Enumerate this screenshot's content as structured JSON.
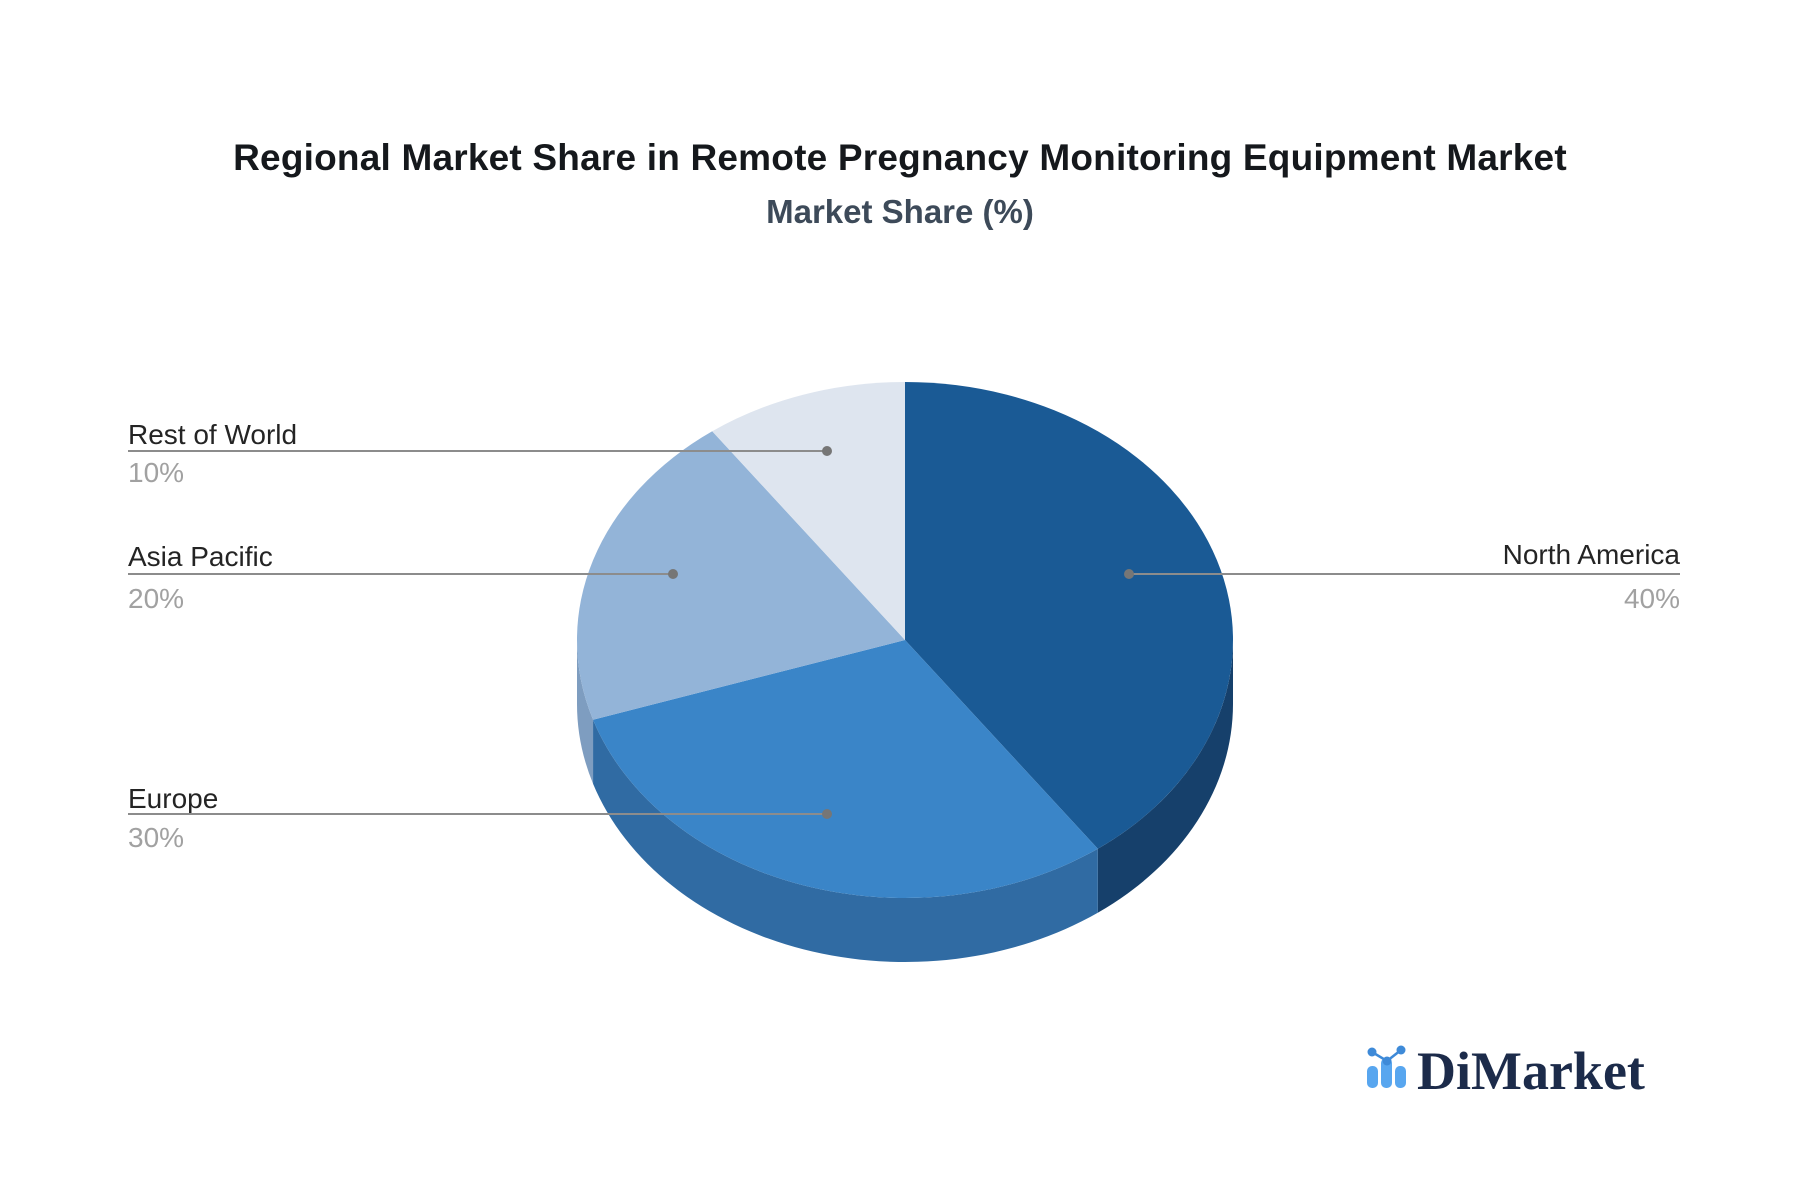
{
  "title": "Regional Market Share in Remote Pregnancy Monitoring Equipment Market",
  "subtitle": "Market Share (%)",
  "brand": {
    "name": "DiMarket",
    "icon": "bar-line-chart-icon",
    "icon_bar_color": "#58a6ef",
    "icon_dot_color": "#3e8ad8",
    "text_color": "#1c2b4a"
  },
  "chart_data": {
    "type": "pie",
    "style": "3d",
    "title": "Regional Market Share in Remote Pregnancy Monitoring Equipment Market",
    "subtitle": "Market Share (%)",
    "unit": "%",
    "start_angle_clock": "12 o'clock, clockwise",
    "legend_position": "callout-labels",
    "categories": [
      "North America",
      "Europe",
      "Asia Pacific",
      "Rest of World"
    ],
    "values": [
      40,
      30,
      20,
      10
    ],
    "slices": [
      {
        "label": "North America",
        "value": 40,
        "pct_label": "40%",
        "color": "#1a5a95",
        "side_color": "#16406b"
      },
      {
        "label": "Europe",
        "value": 30,
        "pct_label": "30%",
        "color": "#3a85c8",
        "side_color": "#306ba3"
      },
      {
        "label": "Asia Pacific",
        "value": 20,
        "pct_label": "20%",
        "color": "#93b4d8",
        "side_color": "#7e9dc0"
      },
      {
        "label": "Rest of World",
        "value": 10,
        "pct_label": "10%",
        "color": "#dee5ef",
        "side_color": "#b9c5d6"
      }
    ],
    "callout_line_color": "#8c8c8c",
    "callout_dot_color": "#767676",
    "label_color": "#242424",
    "pct_color": "#a1a1a1"
  }
}
